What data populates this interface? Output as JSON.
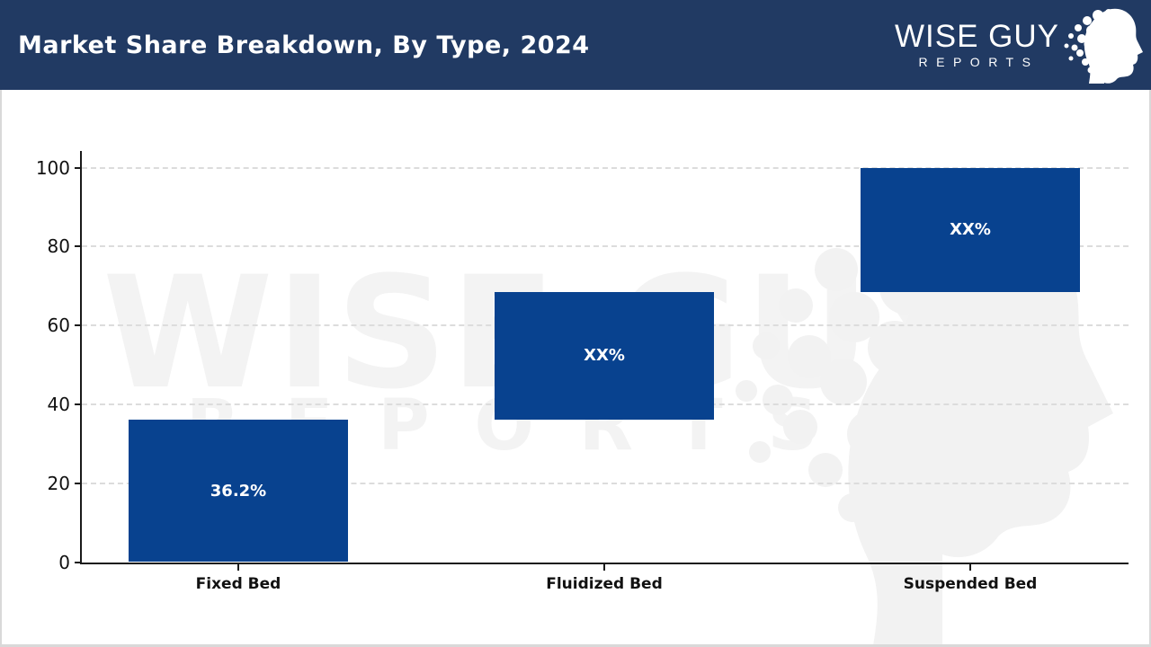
{
  "header": {
    "title": "Market Share Breakdown, By Type, 2024",
    "bg_color": "#213a63",
    "logo": {
      "wordmark": "WISE GUY",
      "subtitle": "REPORTS"
    }
  },
  "watermark": {
    "line1": "WISE GUY",
    "line2": "REPORTS"
  },
  "chart_data": {
    "type": "bar",
    "variant": "floating segment bars (waterfall-style share breakdown)",
    "title": "Market Share Breakdown, By Type, 2024",
    "categories": [
      "Fixed Bed",
      "Fluidized Bed",
      "Suspended Bed"
    ],
    "series": [
      {
        "name": "Market share segment",
        "starts": [
          0,
          36.2,
          68.4
        ],
        "ends": [
          36.2,
          68.4,
          100
        ]
      }
    ],
    "bar_labels": [
      "36.2%",
      "XX%",
      "XX%"
    ],
    "bar_color": "#08428f",
    "bar_label_color": "#ffffff",
    "ylim": [
      0,
      100
    ],
    "yticks": [
      0,
      20,
      40,
      60,
      80,
      100
    ],
    "xlabel": "",
    "ylabel": "",
    "grid": "horizontal dashed",
    "legend": "none"
  }
}
